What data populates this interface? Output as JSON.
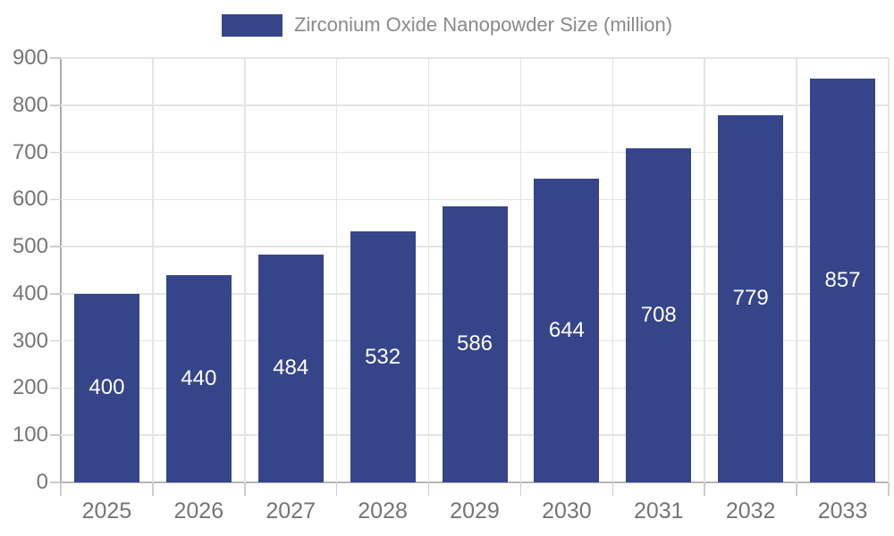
{
  "chart_data": {
    "type": "bar",
    "title": "",
    "legend_label": "Zirconium Oxide Nanopowder Size (million)",
    "legend_position": "top-center",
    "categories": [
      "2025",
      "2026",
      "2027",
      "2028",
      "2029",
      "2030",
      "2031",
      "2032",
      "2033"
    ],
    "values": [
      400,
      440,
      484,
      532,
      586,
      644,
      708,
      779,
      857
    ],
    "xlabel": "",
    "ylabel": "",
    "ylim": [
      0,
      900
    ],
    "yticks": [
      0,
      100,
      200,
      300,
      400,
      500,
      600,
      700,
      800,
      900
    ],
    "grid": true,
    "colors": {
      "bar": "#36458A",
      "value_label": "#FFFFFF",
      "axis_label": "#757575",
      "legend_text": "#8A8A8A",
      "gridline": "#E4E4E4",
      "axis_line": "#ABABAB",
      "tick": "#CCCCCC",
      "background": "#FFFFFF"
    }
  }
}
